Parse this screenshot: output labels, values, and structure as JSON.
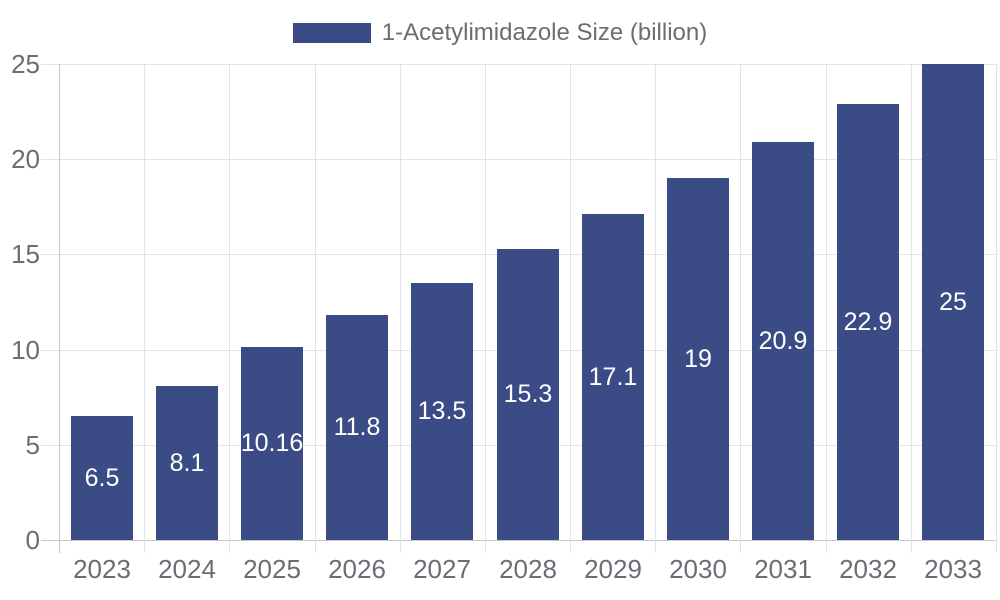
{
  "legend": {
    "label": "1-Acetylimidazole Size (billion)"
  },
  "chart_data": {
    "type": "bar",
    "title": "1-Acetylimidazole Size (billion)",
    "categories": [
      "2023",
      "2024",
      "2025",
      "2026",
      "2027",
      "2028",
      "2029",
      "2030",
      "2031",
      "2032",
      "2033"
    ],
    "values": [
      6.5,
      8.1,
      10.16,
      11.8,
      13.5,
      15.3,
      17.1,
      19,
      20.9,
      22.9,
      25
    ],
    "xlabel": "",
    "ylabel": "",
    "ylim": [
      0,
      25
    ],
    "yticks": [
      0,
      5,
      10,
      15,
      20,
      25
    ],
    "grid": true,
    "legend_position": "top",
    "value_labels": "inside-center"
  },
  "colors": {
    "bar": "#3A4B86",
    "grid": "#E4E4E8",
    "axis": "#C4C4C9",
    "tick_text": "#6A6E74",
    "value_label": "#FFFFFF",
    "background": "#FFFFFF"
  }
}
